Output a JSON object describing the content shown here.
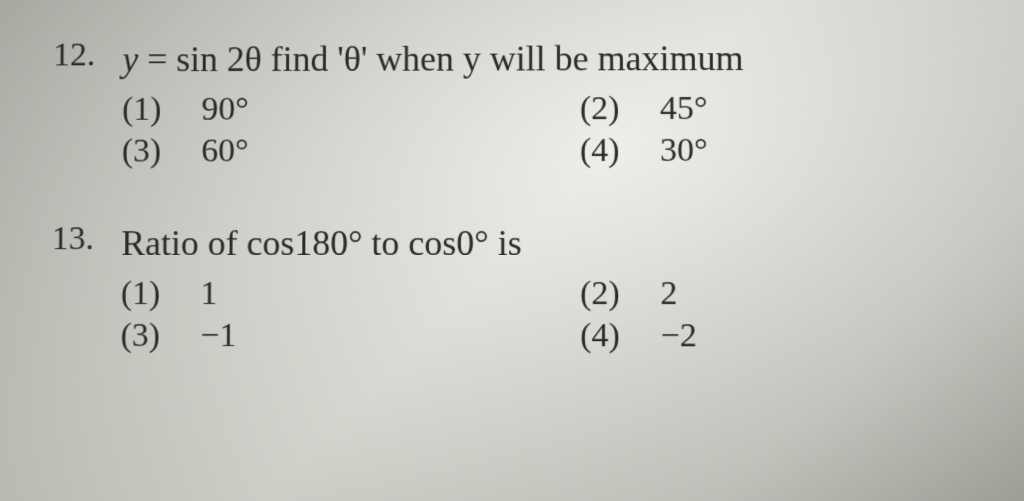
{
  "background_color": "#d8d8d0",
  "text_color": "#2a2a2a",
  "font_family": "Times New Roman",
  "questions": [
    {
      "number": "12.",
      "stem_html": "<span class='italic'>y</span> = sin 2θ find 'θ' when y will be maximum",
      "options": [
        {
          "num": "(1)",
          "text": "90°"
        },
        {
          "num": "(2)",
          "text": "45°"
        },
        {
          "num": "(3)",
          "text": "60°"
        },
        {
          "num": "(4)",
          "text": "30°"
        }
      ]
    },
    {
      "number": "13.",
      "stem_html": "Ratio of cos180° to cos0° is",
      "options": [
        {
          "num": "(1)",
          "text": "1"
        },
        {
          "num": "(2)",
          "text": "2"
        },
        {
          "num": "(3)",
          "text": "−1"
        },
        {
          "num": "(4)",
          "text": "−2"
        }
      ]
    }
  ]
}
